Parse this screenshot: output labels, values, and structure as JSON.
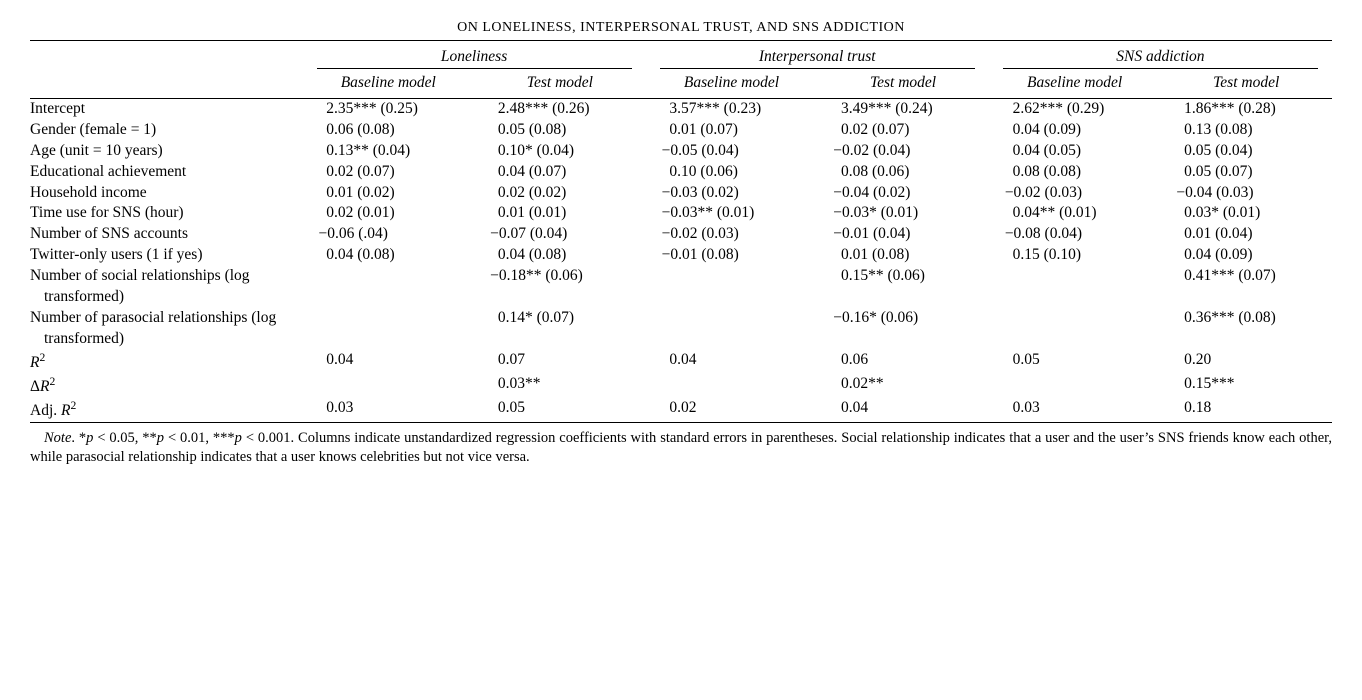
{
  "caption": "ON LONELINESS, INTERPERSONAL TRUST, AND SNS ADDICTION",
  "groups": [
    {
      "label": "Loneliness"
    },
    {
      "label": "Interpersonal trust"
    },
    {
      "label": "SNS addiction"
    }
  ],
  "model_labels": {
    "baseline": "Baseline model",
    "test": "Test model"
  },
  "rows": [
    {
      "label": "Intercept",
      "vals": [
        "2.35*** (0.25)",
        "2.48*** (0.26)",
        "3.57*** (0.23)",
        "3.49*** (0.24)",
        "2.62*** (0.29)",
        "1.86*** (0.28)"
      ]
    },
    {
      "label": "Gender (female = 1)",
      "vals": [
        "0.06 (0.08)",
        "0.05 (0.08)",
        "0.01 (0.07)",
        "0.02 (0.07)",
        "0.04 (0.09)",
        "0.13 (0.08)"
      ]
    },
    {
      "label": "Age (unit = 10 years)",
      "vals": [
        "0.13** (0.04)",
        "0.10* (0.04)",
        "−0.05 (0.04)",
        "−0.02 (0.04)",
        "0.04 (0.05)",
        "0.05 (0.04)"
      ]
    },
    {
      "label": "Educational achievement",
      "vals": [
        "0.02 (0.07)",
        "0.04 (0.07)",
        "0.10 (0.06)",
        "0.08 (0.06)",
        "0.08 (0.08)",
        "0.05 (0.07)"
      ]
    },
    {
      "label": "Household income",
      "vals": [
        "0.01 (0.02)",
        "0.02 (0.02)",
        "−0.03 (0.02)",
        "−0.04 (0.02)",
        "−0.02 (0.03)",
        "−0.04 (0.03)"
      ]
    },
    {
      "label": "Time use for SNS (hour)",
      "vals": [
        "0.02 (0.01)",
        "0.01 (0.01)",
        "−0.03** (0.01)",
        "−0.03* (0.01)",
        "0.04** (0.01)",
        "0.03* (0.01)"
      ]
    },
    {
      "label": "Number of SNS accounts",
      "vals": [
        "−0.06 (.04)",
        "−0.07 (0.04)",
        "−0.02 (0.03)",
        "−0.01 (0.04)",
        "−0.08 (0.04)",
        "0.01 (0.04)"
      ]
    },
    {
      "label": "Twitter-only users (1 if yes)",
      "vals": [
        "0.04 (0.08)",
        "0.04 (0.08)",
        "−0.01 (0.08)",
        "0.01 (0.08)",
        "0.15 (0.10)",
        "0.04 (0.09)"
      ]
    },
    {
      "label": "Number of social relationships (log transformed)",
      "vals": [
        "",
        "−0.18** (0.06)",
        "",
        "0.15** (0.06)",
        "",
        "0.41*** (0.07)"
      ]
    },
    {
      "label": "Number of parasocial relationships (log transformed)",
      "vals": [
        "",
        "0.14* (0.07)",
        "",
        "−0.16* (0.06)",
        "",
        "0.36*** (0.08)"
      ]
    },
    {
      "label": "R²",
      "label_html": "<i>R</i><sup>2</sup>",
      "vals": [
        "0.04",
        "0.07",
        "0.04",
        "0.06",
        "0.05",
        "0.20"
      ]
    },
    {
      "label": "ΔR²",
      "label_html": "Δ<i>R</i><sup>2</sup>",
      "vals": [
        "",
        "0.03**",
        "",
        "0.02**",
        "",
        "0.15***"
      ]
    },
    {
      "label": "Adj. R²",
      "label_html": "Adj. <i>R</i><sup>2</sup>",
      "vals": [
        "0.03",
        "0.05",
        "0.02",
        "0.04",
        "0.03",
        "0.18"
      ]
    }
  ],
  "note_html": "<em>Note</em>. *<em>p</em> < 0.05, **<em>p</em> < 0.01, ***<em>p</em> < 0.001. Columns indicate unstandardized regression coefficients with standard errors in parentheses. Social relationship indicates that a user and the user’s SNS friends know each other, while parasocial relationship indicates that a user knows celebrities but not vice versa."
}
